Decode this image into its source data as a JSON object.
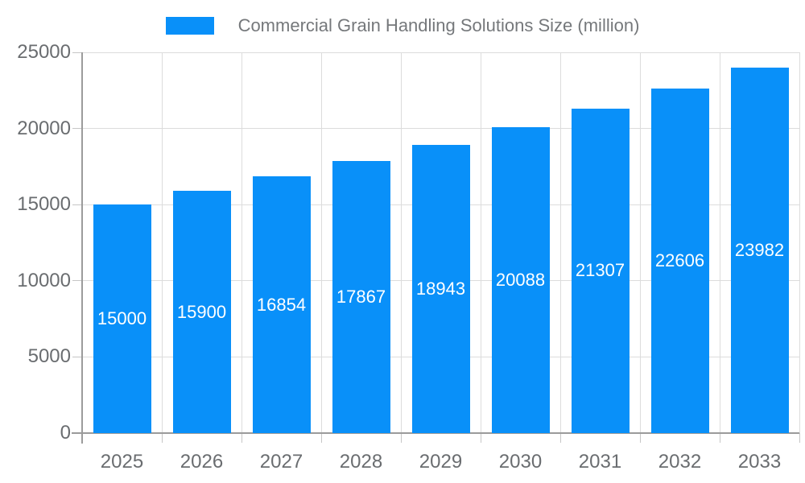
{
  "chart_data": {
    "type": "bar",
    "title": "Commercial Grain Handling Solutions Size (million)",
    "categories": [
      "2025",
      "2026",
      "2027",
      "2028",
      "2029",
      "2030",
      "2031",
      "2032",
      "2033"
    ],
    "values": [
      15000,
      15900,
      16854,
      17867,
      18943,
      20088,
      21307,
      22606,
      23982
    ],
    "series_name": "Commercial Grain Handling Solutions Size (million)",
    "xlabel": "",
    "ylabel": "",
    "ylim": [
      0,
      25000
    ],
    "ytick_step": 5000,
    "ytick_labels": [
      "0",
      "5000",
      "10000",
      "15000",
      "20000",
      "25000"
    ],
    "grid": "on",
    "legend_position": "top-center",
    "bar_labels_shown": true
  },
  "colors": {
    "bar": "#0990f9",
    "bar_label": "#ffffff",
    "axis_text": "#6a6d70",
    "title_text": "#75787b",
    "gridline": "#dcdcdc",
    "axis_line": "#9b9b9b",
    "tick": "#c6c6c6",
    "background": "#ffffff"
  }
}
